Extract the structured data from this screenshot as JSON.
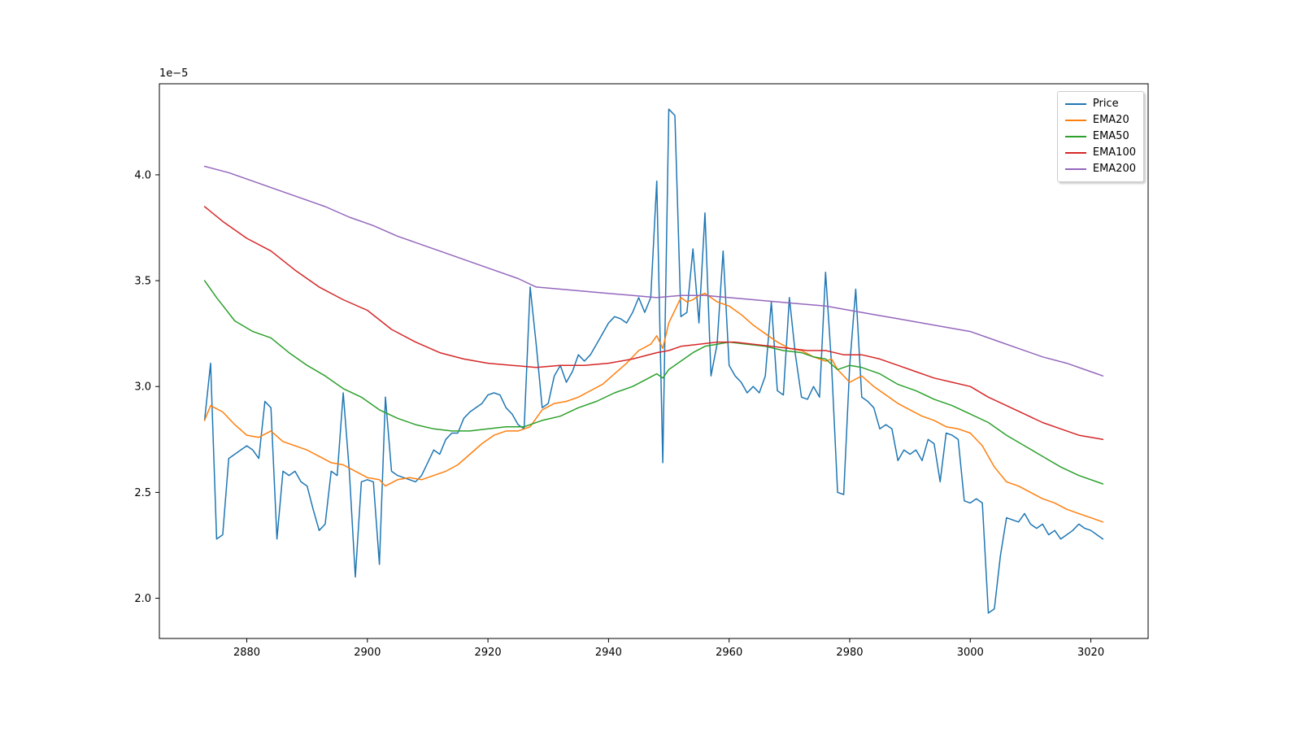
{
  "chart_data": {
    "type": "line",
    "title": "",
    "xlabel": "",
    "ylabel": "",
    "offset_text": "1e−5",
    "y_unit": "1e-5",
    "grid": false,
    "legend_position": "upper right",
    "xlim": [
      2865.5,
      3029.5
    ],
    "ylim": [
      1.81,
      4.43
    ],
    "xticks": [
      2880,
      2900,
      2920,
      2940,
      2960,
      2980,
      3000,
      3020
    ],
    "yticks": [
      2.0,
      2.5,
      3.0,
      3.5,
      4.0
    ],
    "ytick_labels": [
      "2.0",
      "2.5",
      "3.0",
      "3.5",
      "4.0"
    ],
    "series": [
      {
        "name": "Price",
        "color": "#1f77b4",
        "x_start": 2873,
        "y": [
          2.84,
          3.11,
          2.28,
          2.3,
          2.66,
          2.68,
          2.7,
          2.72,
          2.7,
          2.66,
          2.93,
          2.9,
          2.28,
          2.6,
          2.58,
          2.6,
          2.55,
          2.53,
          2.42,
          2.32,
          2.35,
          2.6,
          2.58,
          2.97,
          2.6,
          2.1,
          2.55,
          2.56,
          2.55,
          2.16,
          2.95,
          2.6,
          2.58,
          2.57,
          2.56,
          2.55,
          2.58,
          2.64,
          2.7,
          2.68,
          2.75,
          2.78,
          2.78,
          2.85,
          2.88,
          2.9,
          2.92,
          2.96,
          2.97,
          2.96,
          2.9,
          2.87,
          2.82,
          2.8,
          3.47,
          3.2,
          2.9,
          2.92,
          3.05,
          3.1,
          3.02,
          3.07,
          3.15,
          3.12,
          3.15,
          3.2,
          3.25,
          3.3,
          3.33,
          3.32,
          3.3,
          3.35,
          3.42,
          3.35,
          3.42,
          3.97,
          2.64,
          4.31,
          4.28,
          3.33,
          3.35,
          3.65,
          3.3,
          3.82,
          3.05,
          3.2,
          3.64,
          3.1,
          3.05,
          3.02,
          2.97,
          3.0,
          2.97,
          3.05,
          3.4,
          2.98,
          2.96,
          3.42,
          3.15,
          2.95,
          2.94,
          3.0,
          2.95,
          3.54,
          3.1,
          2.5,
          2.49,
          3.1,
          3.46,
          2.95,
          2.93,
          2.9,
          2.8,
          2.82,
          2.8,
          2.65,
          2.7,
          2.68,
          2.7,
          2.65,
          2.75,
          2.73,
          2.55,
          2.78,
          2.77,
          2.75,
          2.46,
          2.45,
          2.47,
          2.45,
          1.93,
          1.95,
          2.2,
          2.38,
          2.37,
          2.36,
          2.4,
          2.35,
          2.33,
          2.35,
          2.3,
          2.32,
          2.28,
          2.3,
          2.32,
          2.35,
          2.33,
          2.32,
          2.3,
          2.28
        ]
      },
      {
        "name": "EMA20",
        "color": "#ff7f0e",
        "x": [
          2873,
          2874,
          2876,
          2878,
          2880,
          2882,
          2884,
          2886,
          2888,
          2890,
          2892,
          2894,
          2896,
          2898,
          2900,
          2902,
          2903,
          2905,
          2907,
          2909,
          2911,
          2913,
          2915,
          2917,
          2919,
          2921,
          2923,
          2925,
          2927,
          2929,
          2931,
          2933,
          2935,
          2937,
          2939,
          2941,
          2943,
          2945,
          2947,
          2948,
          2949,
          2950,
          2951,
          2952,
          2953,
          2954,
          2955,
          2956,
          2957,
          2958,
          2960,
          2962,
          2964,
          2966,
          2968,
          2970,
          2972,
          2974,
          2976,
          2977,
          2978,
          2980,
          2982,
          2984,
          2986,
          2988,
          2990,
          2992,
          2994,
          2996,
          2998,
          3000,
          3002,
          3004,
          3006,
          3008,
          3010,
          3012,
          3014,
          3016,
          3018,
          3020,
          3022
        ],
        "y": [
          2.84,
          2.91,
          2.88,
          2.82,
          2.77,
          2.76,
          2.79,
          2.74,
          2.72,
          2.7,
          2.67,
          2.64,
          2.63,
          2.6,
          2.57,
          2.56,
          2.53,
          2.56,
          2.57,
          2.56,
          2.58,
          2.6,
          2.63,
          2.68,
          2.73,
          2.77,
          2.79,
          2.79,
          2.81,
          2.89,
          2.92,
          2.93,
          2.95,
          2.98,
          3.01,
          3.06,
          3.11,
          3.17,
          3.2,
          3.24,
          3.18,
          3.3,
          3.36,
          3.42,
          3.4,
          3.41,
          3.43,
          3.44,
          3.42,
          3.4,
          3.38,
          3.34,
          3.29,
          3.25,
          3.21,
          3.18,
          3.17,
          3.14,
          3.12,
          3.13,
          3.08,
          3.02,
          3.05,
          3.0,
          2.96,
          2.92,
          2.89,
          2.86,
          2.84,
          2.81,
          2.8,
          2.78,
          2.72,
          2.62,
          2.55,
          2.53,
          2.5,
          2.47,
          2.45,
          2.42,
          2.4,
          2.38,
          2.36
        ]
      },
      {
        "name": "EMA50",
        "color": "#2ca02c",
        "x": [
          2873,
          2875,
          2878,
          2881,
          2884,
          2887,
          2890,
          2893,
          2896,
          2899,
          2902,
          2905,
          2908,
          2911,
          2914,
          2917,
          2920,
          2923,
          2926,
          2929,
          2932,
          2935,
          2938,
          2941,
          2944,
          2946,
          2948,
          2949,
          2950,
          2952,
          2954,
          2956,
          2958,
          2960,
          2963,
          2966,
          2969,
          2972,
          2974,
          2976,
          2978,
          2980,
          2982,
          2985,
          2988,
          2991,
          2994,
          2997,
          3000,
          3003,
          3006,
          3009,
          3012,
          3015,
          3018,
          3022
        ],
        "y": [
          3.5,
          3.42,
          3.31,
          3.26,
          3.23,
          3.16,
          3.1,
          3.05,
          2.99,
          2.95,
          2.89,
          2.85,
          2.82,
          2.8,
          2.79,
          2.79,
          2.8,
          2.81,
          2.81,
          2.84,
          2.86,
          2.9,
          2.93,
          2.97,
          3.0,
          3.03,
          3.06,
          3.04,
          3.08,
          3.12,
          3.16,
          3.19,
          3.2,
          3.21,
          3.2,
          3.19,
          3.17,
          3.16,
          3.14,
          3.13,
          3.08,
          3.1,
          3.09,
          3.06,
          3.01,
          2.98,
          2.94,
          2.91,
          2.87,
          2.83,
          2.77,
          2.72,
          2.67,
          2.62,
          2.58,
          2.54
        ]
      },
      {
        "name": "EMA100",
        "color": "#d62728",
        "x": [
          2873,
          2876,
          2880,
          2884,
          2888,
          2892,
          2896,
          2900,
          2904,
          2908,
          2912,
          2916,
          2920,
          2924,
          2928,
          2932,
          2936,
          2940,
          2944,
          2948,
          2950,
          2952,
          2955,
          2958,
          2961,
          2964,
          2967,
          2970,
          2973,
          2976,
          2979,
          2982,
          2985,
          2988,
          2991,
          2994,
          2997,
          3000,
          3003,
          3006,
          3009,
          3012,
          3015,
          3018,
          3022
        ],
        "y": [
          3.85,
          3.78,
          3.7,
          3.64,
          3.55,
          3.47,
          3.41,
          3.36,
          3.27,
          3.21,
          3.16,
          3.13,
          3.11,
          3.1,
          3.09,
          3.1,
          3.1,
          3.11,
          3.13,
          3.16,
          3.17,
          3.19,
          3.2,
          3.21,
          3.21,
          3.2,
          3.19,
          3.18,
          3.17,
          3.17,
          3.15,
          3.15,
          3.13,
          3.1,
          3.07,
          3.04,
          3.02,
          3.0,
          2.95,
          2.91,
          2.87,
          2.83,
          2.8,
          2.77,
          2.75
        ]
      },
      {
        "name": "EMA200",
        "color": "#9467bd",
        "x": [
          2873,
          2877,
          2881,
          2885,
          2889,
          2893,
          2897,
          2901,
          2905,
          2909,
          2913,
          2917,
          2921,
          2925,
          2928,
          2932,
          2936,
          2940,
          2944,
          2948,
          2952,
          2956,
          2960,
          2964,
          2968,
          2972,
          2976,
          2980,
          2984,
          2988,
          2992,
          2996,
          3000,
          3004,
          3008,
          3012,
          3016,
          3020,
          3022
        ],
        "y": [
          4.04,
          4.01,
          3.97,
          3.93,
          3.89,
          3.85,
          3.8,
          3.76,
          3.71,
          3.67,
          3.63,
          3.59,
          3.55,
          3.51,
          3.47,
          3.46,
          3.45,
          3.44,
          3.43,
          3.42,
          3.43,
          3.43,
          3.42,
          3.41,
          3.4,
          3.39,
          3.38,
          3.36,
          3.34,
          3.32,
          3.3,
          3.28,
          3.26,
          3.22,
          3.18,
          3.14,
          3.11,
          3.07,
          3.05
        ]
      }
    ]
  }
}
